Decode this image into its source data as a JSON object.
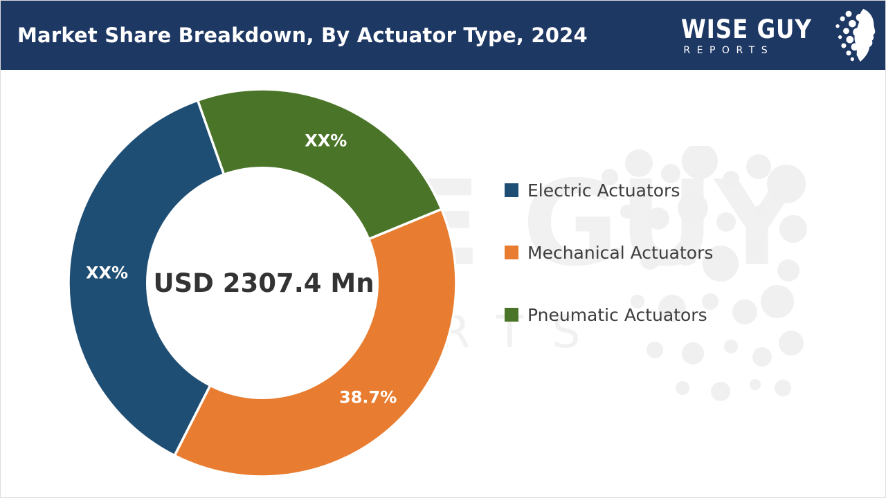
{
  "header": {
    "title": "Market Share Breakdown, By Actuator Type, 2024",
    "logo": {
      "line1": "WISE GUY",
      "line2": "REPORTS"
    }
  },
  "colors": {
    "header_bg": "#1E3864",
    "electric_blue": "#1F4E74",
    "mechanical_orange": "#E87D31",
    "pneumatic_green": "#4A7528",
    "slice_label_text": "#FFFFFF",
    "center_text": "#333333",
    "legend_text": "#3D3D3D",
    "watermark_gray": "#F1F1F1"
  },
  "chart_data": {
    "type": "pie",
    "subtype": "donut",
    "title": "Market Share Breakdown, By Actuator Type, 2024",
    "center_label": "USD 2307.4 Mn",
    "legend_position": "right",
    "start_angle_deg": 109.5,
    "direction": "clockwise",
    "slices": [
      {
        "label": "Pneumatic Actuators",
        "displayed_value": "XX%",
        "value_pct_estimated": 24.2,
        "color": "#4A7528"
      },
      {
        "label": "Mechanical Actuators",
        "displayed_value": "38.7%",
        "value_pct_estimated": 38.7,
        "color": "#E87D31"
      },
      {
        "label": "Electric Actuators",
        "displayed_value": "XX%",
        "value_pct_estimated": 37.1,
        "color": "#1F4E74"
      }
    ]
  },
  "legend": {
    "items": [
      {
        "label": "Electric Actuators",
        "color": "#1F4E74"
      },
      {
        "label": "Mechanical Actuators",
        "color": "#E87D31"
      },
      {
        "label": "Pneumatic Actuators",
        "color": "#4A7528"
      }
    ]
  },
  "watermark": {
    "line1": "WISE GUY",
    "line2": "REPORTS"
  }
}
